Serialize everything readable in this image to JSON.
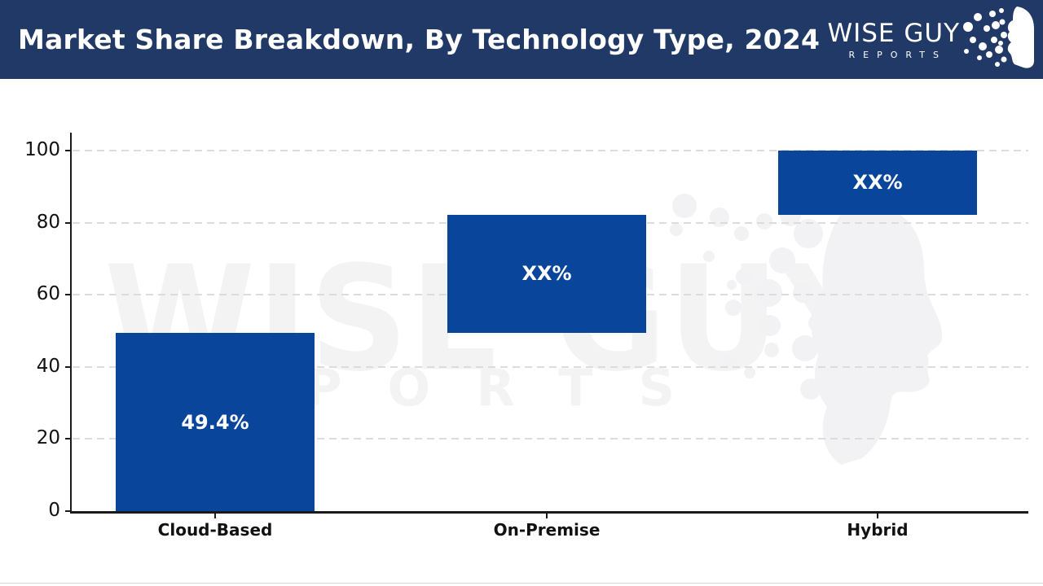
{
  "header": {
    "title": "Market Share Breakdown, By Technology Type, 2024",
    "bg_color": "#213966",
    "logo": {
      "line1": "WISE GUY",
      "line2": "REPORTS"
    }
  },
  "watermark": {
    "line1": "WISE GUY",
    "line2": "REPORTS"
  },
  "chart_data": {
    "type": "bar",
    "variant": "floating stacked segments (waterfall-style market share breakdown)",
    "categories": [
      "Cloud-Based",
      "On-Premise",
      "Hybrid"
    ],
    "segments": [
      {
        "category": "Cloud-Based",
        "start": 0,
        "end": 49.4,
        "label": "49.4%"
      },
      {
        "category": "On-Premise",
        "start": 49.4,
        "end": 82.2,
        "label": "XX%"
      },
      {
        "category": "Hybrid",
        "start": 82.2,
        "end": 100,
        "label": "XX%"
      }
    ],
    "y_ticks": [
      0,
      20,
      40,
      60,
      80,
      100
    ],
    "ylim": [
      0,
      105
    ],
    "xlabel": "",
    "ylabel": "",
    "grid": "horizontal dashed",
    "legend": "none",
    "bar_color": "#09459b",
    "bar_label_color": "#ffffff",
    "axis_color": "#1a1a1a",
    "gridline_color": "#dcdcdc"
  }
}
